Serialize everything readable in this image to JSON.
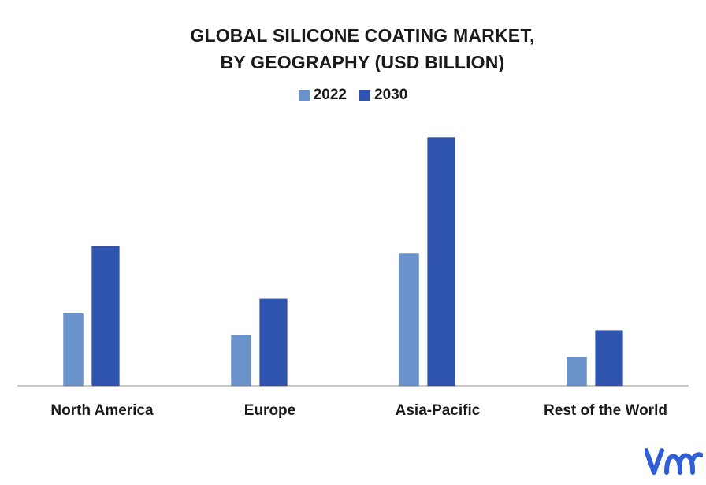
{
  "chart_data": {
    "type": "bar",
    "title_lines": [
      "GLOBAL SILICONE COATING MARKET,",
      "BY GEOGRAPHY (USD BILLION)"
    ],
    "categories": [
      "North America",
      "Europe",
      "Asia-Pacific",
      "Rest of the World"
    ],
    "series": [
      {
        "name": "2022",
        "values": [
          3.0,
          2.1,
          5.5,
          1.2
        ],
        "color": "#6a93cb"
      },
      {
        "name": "2030",
        "values": [
          5.8,
          3.6,
          10.3,
          2.3
        ],
        "color": "#2e54b0"
      }
    ],
    "ylim": [
      0,
      11
    ],
    "grid": false,
    "legend_position": "top-center",
    "axis_color": "#b5b5b5"
  },
  "logo": {
    "name": "vmr-logo-icon",
    "color": "#2f5ed6"
  }
}
